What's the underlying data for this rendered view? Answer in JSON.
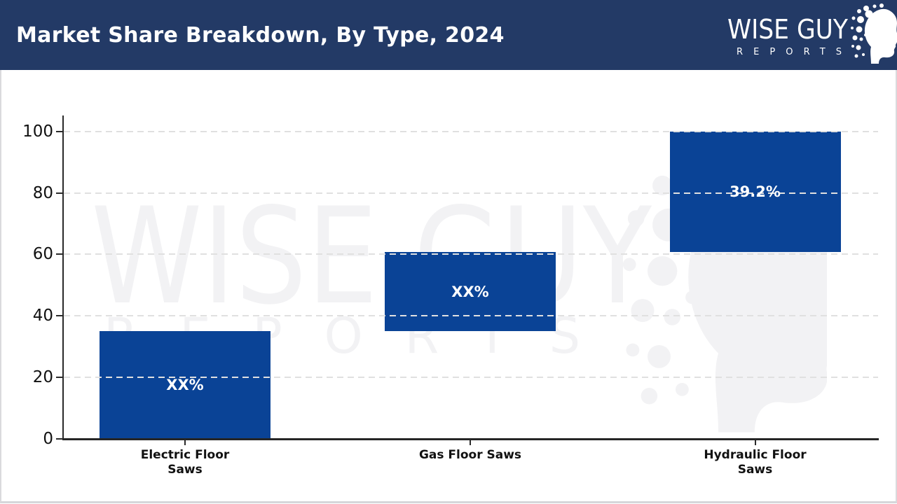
{
  "header": {
    "title": "Market Share Breakdown, By Type, 2024",
    "logo": {
      "line1": "WISE GUY",
      "line2": "REPORTS"
    }
  },
  "watermark": {
    "line1": "WISE GUY",
    "line2": "REPORTS"
  },
  "chart_data": {
    "type": "bar",
    "subtype": "waterfall-stacked",
    "title": "Market Share Breakdown, By Type, 2024",
    "categories": [
      "Electric Floor Saws",
      "Gas Floor Saws",
      "Hydraulic Floor Saws"
    ],
    "category_label_lines": [
      [
        "Electric Floor",
        "Saws"
      ],
      [
        "Gas Floor Saws"
      ],
      [
        "Hydraulic Floor",
        "Saws"
      ]
    ],
    "series": [
      {
        "name": "Market share (%)",
        "segments": [
          {
            "category": "Electric Floor Saws",
            "start": 0,
            "end": 35.0,
            "label": "XX%"
          },
          {
            "category": "Gas Floor Saws",
            "start": 35.0,
            "end": 60.8,
            "label": "XX%"
          },
          {
            "category": "Hydraulic Floor Saws",
            "start": 60.8,
            "end": 100,
            "label": "39.2%"
          }
        ]
      }
    ],
    "xlabel": "",
    "ylabel": "",
    "ylim": [
      0,
      105
    ],
    "yticks": [
      0,
      20,
      40,
      60,
      80,
      100
    ],
    "grid": {
      "horizontal": true,
      "style": "dashed",
      "color": "#e0e0e0"
    },
    "legend": null,
    "bar_color": "#0a4396",
    "bar_label_color": "#ffffff"
  },
  "colors": {
    "header_bg": "#233a66",
    "bar": "#0a4396",
    "axis": "#2a2a2a",
    "grid": "#e0e0e0",
    "watermark": "#f2f2f4",
    "page_border": "#dadadd"
  }
}
